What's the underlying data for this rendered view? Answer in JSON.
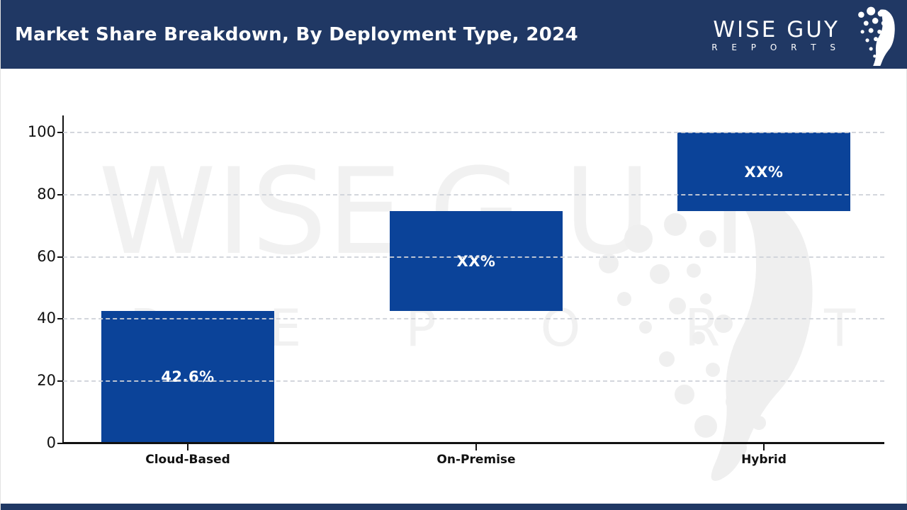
{
  "header": {
    "title": "Market Share Breakdown, By Deployment Type, 2024"
  },
  "logo": {
    "line1": "WISE GUY",
    "line2": "R E P O R T S"
  },
  "watermark": {
    "line1_left": "WISE",
    "line1_right": "GUY",
    "line2": "R E P O R T S"
  },
  "colors": {
    "header_bg": "#203864",
    "footer_bg": "#203864",
    "bar": "#0B4399",
    "axis": "#111111",
    "grid": "#ced1d8",
    "bar_label": "#ffffff",
    "watermark": "#f1f1f1"
  },
  "chart_data": {
    "type": "bar",
    "subtype": "floating-segment-breakdown",
    "title": "Market Share Breakdown, By Deployment Type, 2024",
    "categories": [
      "Cloud-Based",
      "On-Premise",
      "Hybrid"
    ],
    "series": [
      {
        "name": "Market Share (%)",
        "segments": [
          {
            "category": "Cloud-Based",
            "start": 0,
            "end": 42.6,
            "label": "42.6%"
          },
          {
            "category": "On-Premise",
            "start": 42.6,
            "end": 74.7,
            "label": "XX%"
          },
          {
            "category": "Hybrid",
            "start": 74.7,
            "end": 100,
            "label": "XX%"
          }
        ]
      }
    ],
    "xlabel": "",
    "ylabel": "",
    "ylim": [
      0,
      100
    ],
    "yticks": [
      0,
      20,
      40,
      60,
      80,
      100
    ],
    "grid": "dashed-horizontal",
    "legend": "none",
    "bar_color": "#0B4399"
  }
}
